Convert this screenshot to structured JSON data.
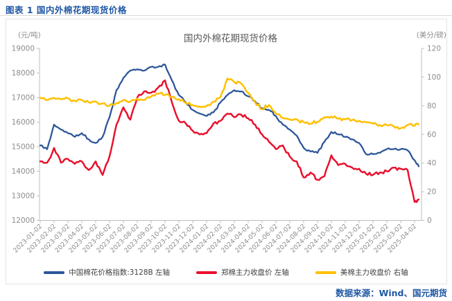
{
  "header": {
    "title": "图表 1 国内外棉花期现货价格"
  },
  "footer": {
    "source": "数据来源：Wind、国元期货"
  },
  "colors": {
    "accent_blue": "#1f57a4",
    "axis_line_gray": "#bfbfbf",
    "tick_label_gray": "#8c8c8c",
    "chart_title_gray": "#595959"
  },
  "chart_data": {
    "type": "line",
    "title": "国内外棉花期现货价格",
    "grid": false,
    "legend_position": "bottom",
    "left_axis": {
      "unit": "(元/吨)",
      "min": 12000,
      "max": 19000,
      "ticks": [
        19000,
        18000,
        17000,
        16000,
        15000,
        14000,
        13000,
        12000
      ]
    },
    "right_axis": {
      "unit": "(美分/磅)",
      "min": 0,
      "max": 120,
      "ticks": [
        120,
        100,
        80,
        60,
        40,
        20,
        0
      ]
    },
    "x_axis": {
      "labels": [
        "2023-01-02",
        "2023-02-02",
        "2023-03-02",
        "2023-04-02",
        "2023-05-02",
        "2023-06-02",
        "2023-07-02",
        "2023-08-02",
        "2023-09-02",
        "2023-10-02",
        "2023-11-02",
        "2023-12-02",
        "2024-01-02",
        "2024-02-02",
        "2024-03-02",
        "2024-04-02",
        "2024-05-02",
        "2024-06-02",
        "2024-07-02",
        "2024-08-02",
        "2024-09-02",
        "2024-10-02",
        "2024-11-02",
        "2024-12-02",
        "2025-01-02",
        "2025-02-02",
        "2025-03-02",
        "2025-04-02"
      ]
    },
    "x": [
      0,
      0.5,
      1,
      1.5,
      2,
      2.5,
      3,
      3.5,
      4,
      4.5,
      5,
      5.5,
      6,
      6.5,
      7,
      7.5,
      8,
      8.5,
      9,
      9.5,
      10,
      10.5,
      11,
      11.5,
      12,
      12.5,
      13,
      13.5,
      14,
      14.5,
      15,
      15.5,
      16,
      16.5,
      17,
      17.5,
      18,
      18.5,
      19,
      19.5,
      20,
      20.5,
      21,
      21.5,
      22,
      22.5,
      23,
      23.5,
      24,
      24.5,
      25,
      25.5,
      26,
      26.5,
      27,
      27.3
    ],
    "series": [
      {
        "name": "中国棉花价格指数:3128B",
        "legend_label": "中国棉花价格指数:3128B 左轴",
        "axis": "left",
        "color": "#2d5699",
        "daily_volatility": 55,
        "values": [
          15050,
          14900,
          15900,
          15700,
          15550,
          15400,
          15550,
          15300,
          15150,
          15400,
          16200,
          17300,
          17800,
          18100,
          18150,
          18100,
          18250,
          18250,
          18350,
          17700,
          17100,
          16800,
          16500,
          16350,
          16250,
          16400,
          16800,
          17100,
          17300,
          17250,
          17050,
          16850,
          16550,
          16500,
          16250,
          15900,
          15700,
          15450,
          14950,
          14800,
          14750,
          15200,
          15600,
          15500,
          15400,
          15300,
          15150,
          14700,
          14700,
          14750,
          14900,
          14900,
          14900,
          14850,
          14450,
          14200
        ]
      },
      {
        "name": "郑棉主力收盘价",
        "legend_label": "郑棉主力收盘价 左轴",
        "axis": "left",
        "color": "#e8112d",
        "daily_volatility": 75,
        "values": [
          14400,
          14350,
          14950,
          14350,
          14500,
          14300,
          14400,
          14050,
          14400,
          13850,
          14600,
          15900,
          16600,
          16100,
          17000,
          17250,
          17200,
          17400,
          17700,
          16800,
          16050,
          15950,
          15650,
          15500,
          15550,
          15950,
          16050,
          16350,
          16200,
          16300,
          16150,
          15900,
          15500,
          15200,
          14900,
          15050,
          14600,
          14400,
          13750,
          13950,
          13650,
          13800,
          14650,
          14250,
          14300,
          14150,
          14100,
          13900,
          13850,
          13950,
          14000,
          14150,
          14100,
          14050,
          12750,
          12850
        ]
      },
      {
        "name": "美棉主力收盘价",
        "legend_label": "美棉主力收盘价 右轴",
        "axis": "right",
        "color": "#ffc000",
        "daily_volatility": 1.3,
        "values": [
          85.5,
          84,
          85.5,
          84.5,
          85,
          83.5,
          84,
          82.5,
          83,
          81.5,
          80,
          82,
          84,
          83,
          85,
          84,
          86.5,
          88.5,
          87.5,
          86,
          84.5,
          82,
          80.5,
          79.5,
          80,
          83,
          86,
          99,
          96.5,
          95.5,
          89,
          82.5,
          77.5,
          80.5,
          74.5,
          71.5,
          70.5,
          70.5,
          68.5,
          67.5,
          69,
          72,
          72.5,
          71,
          70.5,
          70,
          69.5,
          68.5,
          67.5,
          66.5,
          66.5,
          65.5,
          64.2,
          66.5,
          66,
          67
        ]
      }
    ]
  }
}
